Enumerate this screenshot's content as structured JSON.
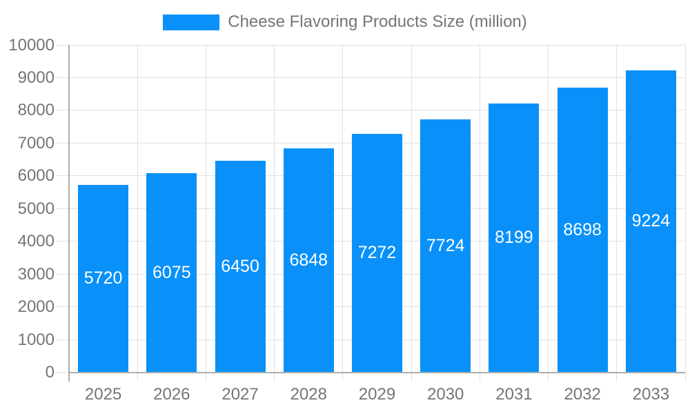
{
  "chart_data": {
    "type": "bar",
    "title": "Cheese Flavoring Products Size (million)",
    "legend": {
      "label": "Cheese Flavoring Products Size (million)",
      "position": "top-center"
    },
    "categories": [
      "2025",
      "2026",
      "2027",
      "2028",
      "2029",
      "2030",
      "2031",
      "2032",
      "2033"
    ],
    "values": [
      5720,
      6075,
      6450,
      6848,
      7272,
      7724,
      8199,
      8698,
      9224
    ],
    "value_labels_shown": true,
    "xlabel": "",
    "ylabel": "",
    "ylim": [
      0,
      10000
    ],
    "ytick_step": 1000,
    "yticks": [
      0,
      1000,
      2000,
      3000,
      4000,
      5000,
      6000,
      7000,
      8000,
      9000,
      10000
    ],
    "grid": true,
    "colors": {
      "bar": "#0991f9",
      "value_label": "#ffffff",
      "axis_text": "#757575",
      "gridline": "#e1e1e1",
      "axis_line": "#adadad",
      "background": "#ffffff"
    }
  }
}
